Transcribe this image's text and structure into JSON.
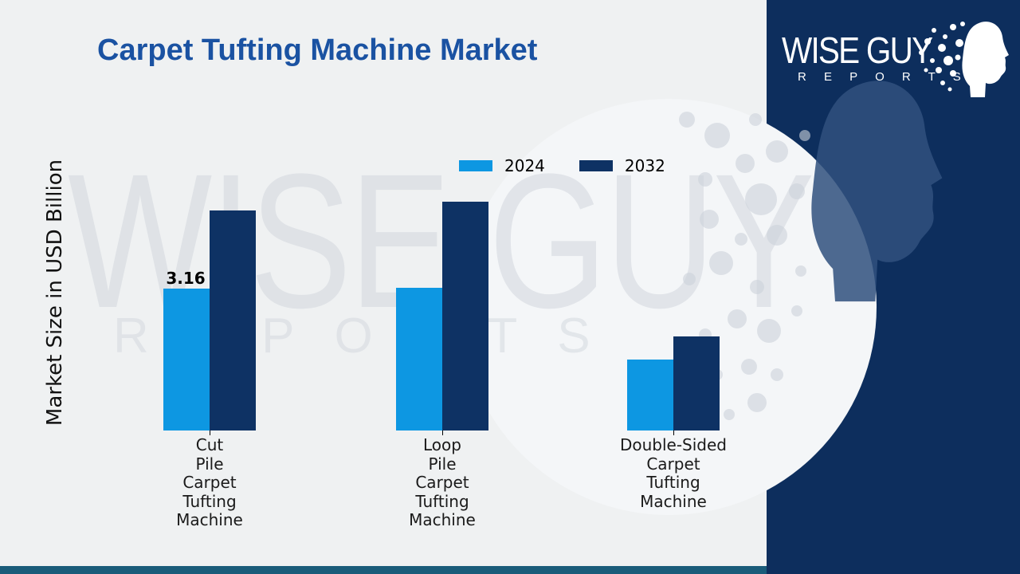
{
  "page": {
    "title": "Carpet Tufting Machine Market"
  },
  "chart_data": {
    "type": "bar",
    "title": "Carpet Tufting Machine Market",
    "xlabel": "",
    "ylabel": "Market Size in USD Billion",
    "categories": [
      "Cut Pile Carpet Tufting Machine",
      "Loop Pile Carpet Tufting Machine",
      "Double-Sided Carpet Tufting Machine"
    ],
    "categories_multiline": [
      "Cut\nPile\nCarpet\nTufting\nMachine",
      "Loop\nPile\nCarpet\nTufting\nMachine",
      "Double-Sided\nCarpet\nTufting\nMachine"
    ],
    "series": [
      {
        "name": "2024",
        "color": "#0d97e2",
        "values": [
          3.16,
          3.18,
          1.58
        ],
        "point_labels": [
          "3.16",
          "",
          ""
        ]
      },
      {
        "name": "2032",
        "color": "#0e3264",
        "values": [
          4.9,
          5.1,
          2.1
        ],
        "point_labels": [
          "",
          "",
          ""
        ]
      }
    ],
    "ylim": [
      0,
      5.6
    ],
    "grid": false,
    "legend_position": "top-center",
    "data_label_note": "Only the first 2024 bar is labeled with its value 3.16"
  },
  "branding": {
    "logo_line1": "WISE GUY",
    "logo_line2": "R E P O R T S",
    "watermark_line1": "WISE GUY",
    "watermark_line2": "REPORTS",
    "panel_color": "#0d2e5d",
    "accent_bar_color": "#1a5c7a",
    "title_color": "#1a52a2",
    "series_2024_color": "#0d97e2",
    "series_2032_color": "#0e3264"
  }
}
